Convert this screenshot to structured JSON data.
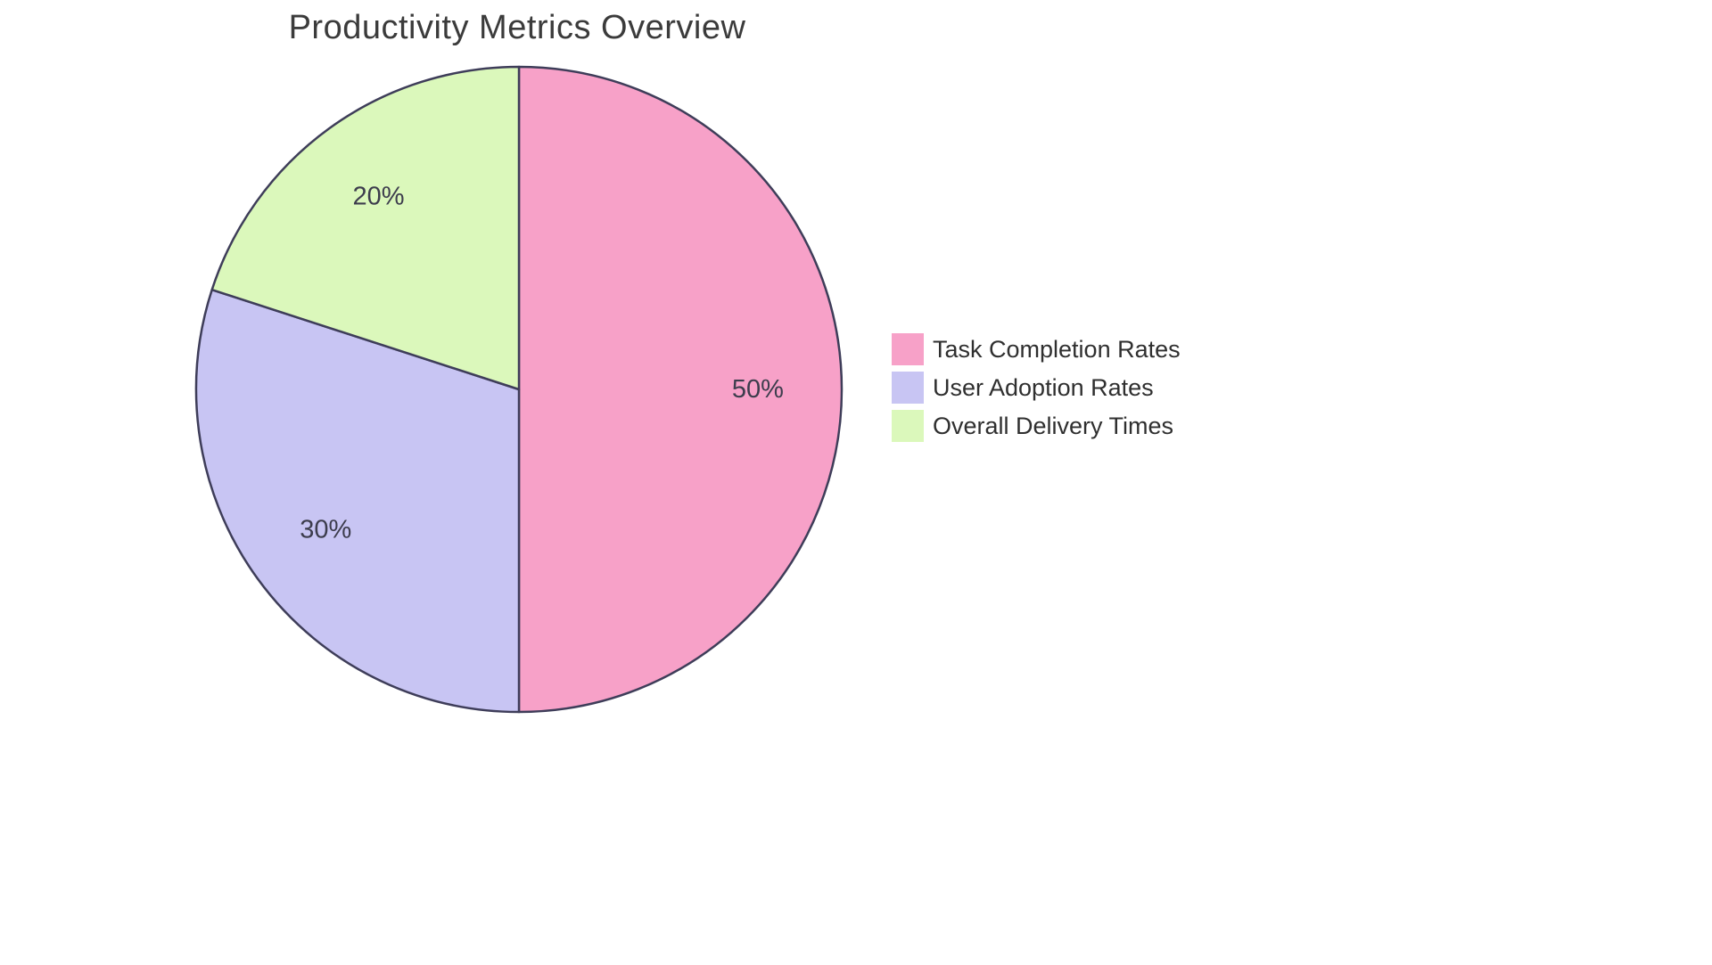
{
  "page": {
    "background_color": "#FFFFFF"
  },
  "chart_data": {
    "type": "pie",
    "title": "Productivity Metrics Overview",
    "labels": [
      "Task Completion Rates",
      "User Adoption Rates",
      "Overall Delivery Times"
    ],
    "values": [
      50,
      30,
      20
    ],
    "slice_text": [
      "50%",
      "30%",
      "20%"
    ],
    "colors": [
      "#F7A1C8",
      "#C8C5F3",
      "#DBF8BB"
    ],
    "stroke_color": "#3E3D59",
    "label_color": "#3D3D4D",
    "start_angle": "top",
    "direction": "clockwise",
    "legend_position": "right",
    "grid": "off"
  }
}
